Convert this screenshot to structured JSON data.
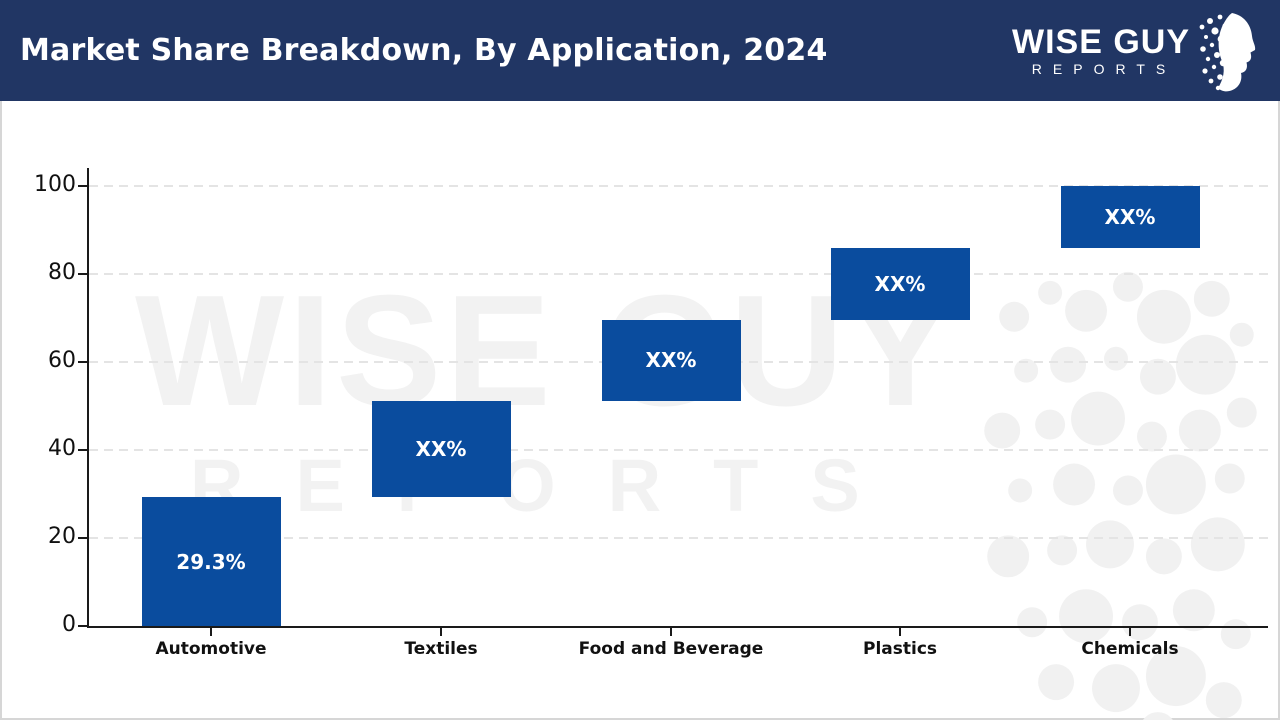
{
  "header": {
    "title": "Market Share Breakdown, By Application, 2024",
    "logo": {
      "line1": "WISE GUY",
      "line2": "REPORTS"
    }
  },
  "watermark": {
    "line1": "WISE GUY",
    "line2": "REPORTS"
  },
  "chart_data": {
    "type": "bar",
    "subtype": "waterfall",
    "title": "Market Share Breakdown, By Application, 2024",
    "categories": [
      "Automotive",
      "Textiles",
      "Food and Beverage",
      "Plastics",
      "Chemicals"
    ],
    "series": [
      {
        "name": "Market Share",
        "segments": [
          {
            "category": "Automotive",
            "start": 0,
            "end": 29.3,
            "label": "29.3%"
          },
          {
            "category": "Textiles",
            "start": 29.3,
            "end": 51.2,
            "label": "XX%"
          },
          {
            "category": "Food and Beverage",
            "start": 51.2,
            "end": 69.6,
            "label": "XX%"
          },
          {
            "category": "Plastics",
            "start": 69.6,
            "end": 85.9,
            "label": "XX%"
          },
          {
            "category": "Chemicals",
            "start": 85.9,
            "end": 100,
            "label": "XX%"
          }
        ]
      }
    ],
    "xlabel": "",
    "ylabel": "",
    "yticks": [
      0,
      20,
      40,
      60,
      80,
      100
    ],
    "ylim": [
      0,
      104
    ],
    "grid": "horizontal-dashed",
    "legend": "none",
    "bar_color": "#0a4c9e",
    "bar_label_color": "#ffffff"
  }
}
